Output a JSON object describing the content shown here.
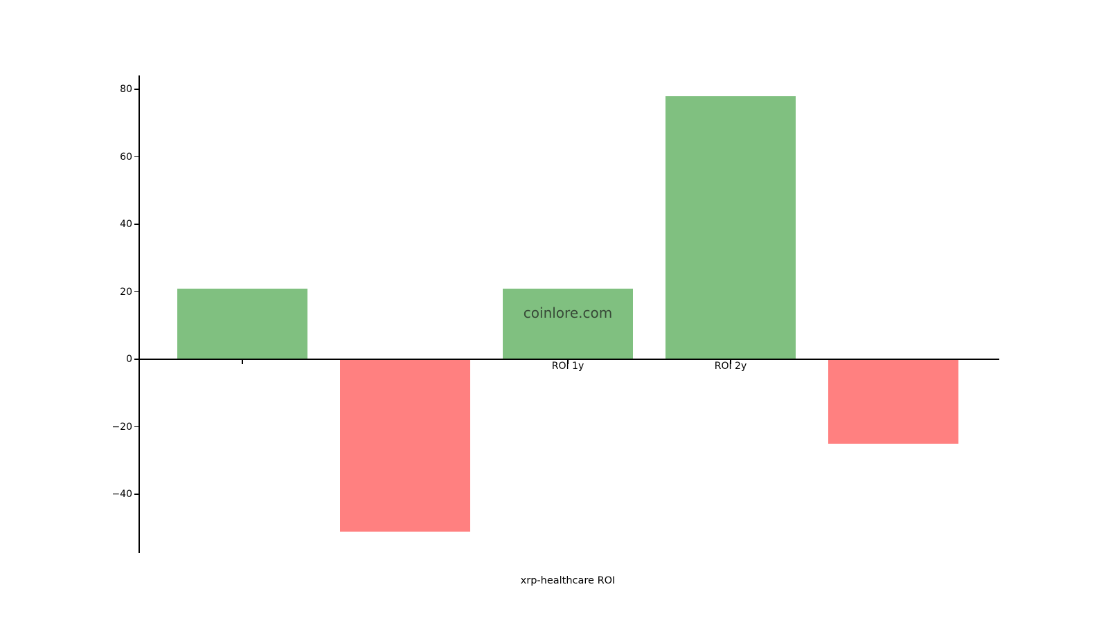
{
  "chart_data": {
    "type": "bar",
    "categories": [
      "",
      "",
      "ROI 1y",
      "ROI 2y",
      ""
    ],
    "values": [
      21,
      -51,
      21,
      78,
      -25
    ],
    "title": "",
    "xlabel": "xrp-healthcare ROI",
    "ylabel": "",
    "yticks": [
      80,
      60,
      40,
      20,
      0,
      -20,
      -40
    ],
    "ylim": [
      -57,
      84
    ],
    "grid": false,
    "legend": false,
    "watermark": "coinlore.com",
    "colors": {
      "positive_bar": "#80C080",
      "negative_bar": "#FF8080",
      "axis": "#000000",
      "watermark_text": "rgba(42,52,42,0.85)"
    }
  }
}
